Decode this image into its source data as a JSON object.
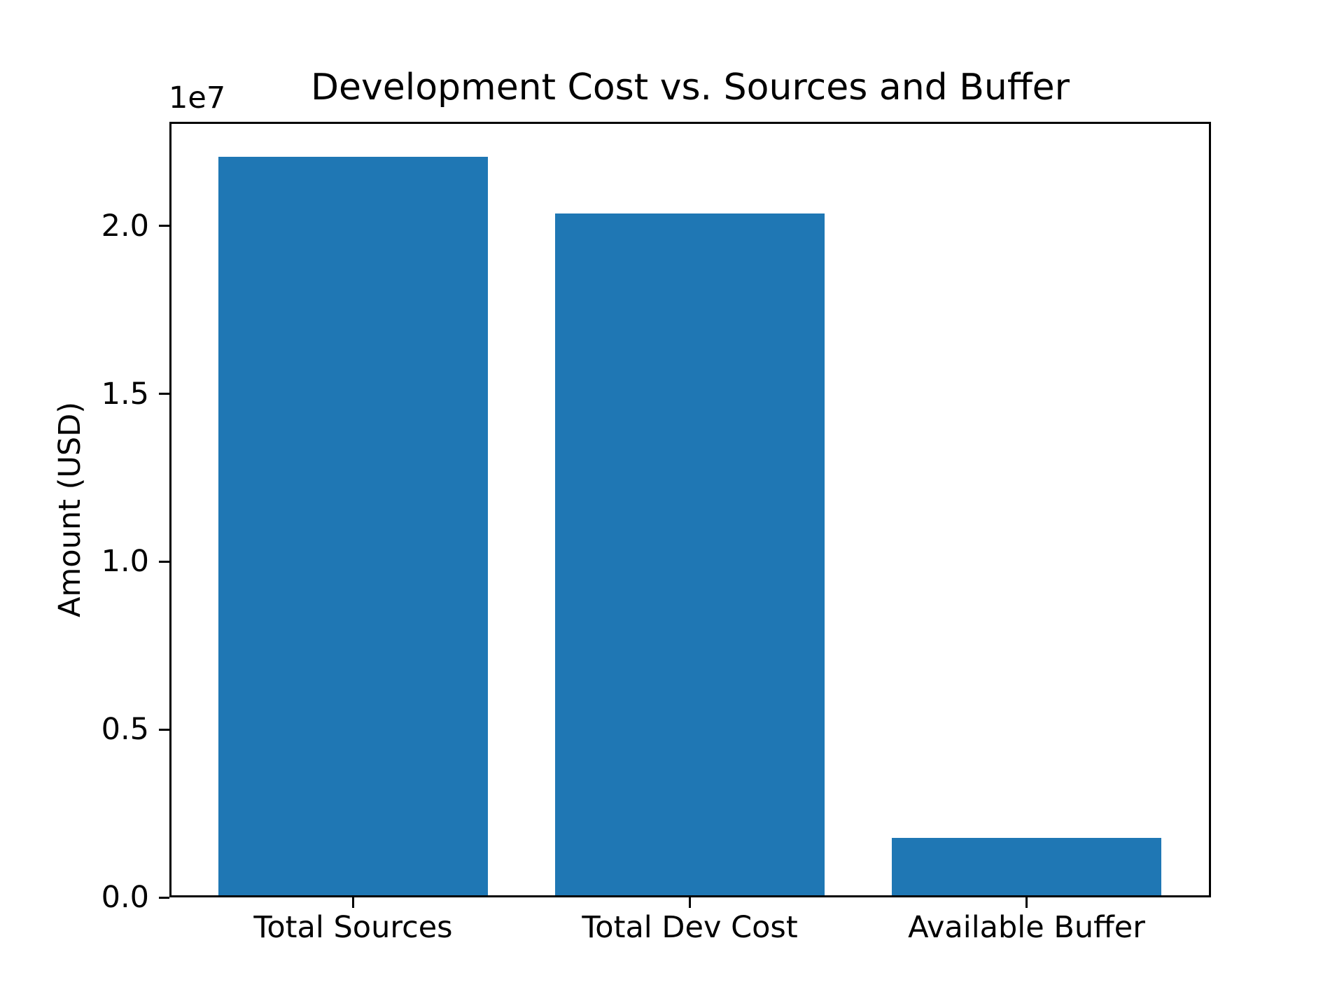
{
  "chart_data": {
    "type": "bar",
    "title": "Development Cost vs. Sources and Buffer",
    "ylabel": "Amount (USD)",
    "xlabel": "",
    "y_offset_label": "1e7",
    "categories": [
      "Total Sources",
      "Total Dev Cost",
      "Available Buffer"
    ],
    "values": [
      22000000,
      20300000,
      1700000
    ],
    "yticks": [
      {
        "value": 0,
        "label": "0.0"
      },
      {
        "value": 5000000,
        "label": "0.5"
      },
      {
        "value": 10000000,
        "label": "1.0"
      },
      {
        "value": 15000000,
        "label": "1.5"
      },
      {
        "value": 20000000,
        "label": "2.0"
      }
    ],
    "ylim": [
      0,
      23100000
    ],
    "bar_color": "#1f77b4",
    "text_color": "#000000",
    "grid": false,
    "legend": "none"
  }
}
